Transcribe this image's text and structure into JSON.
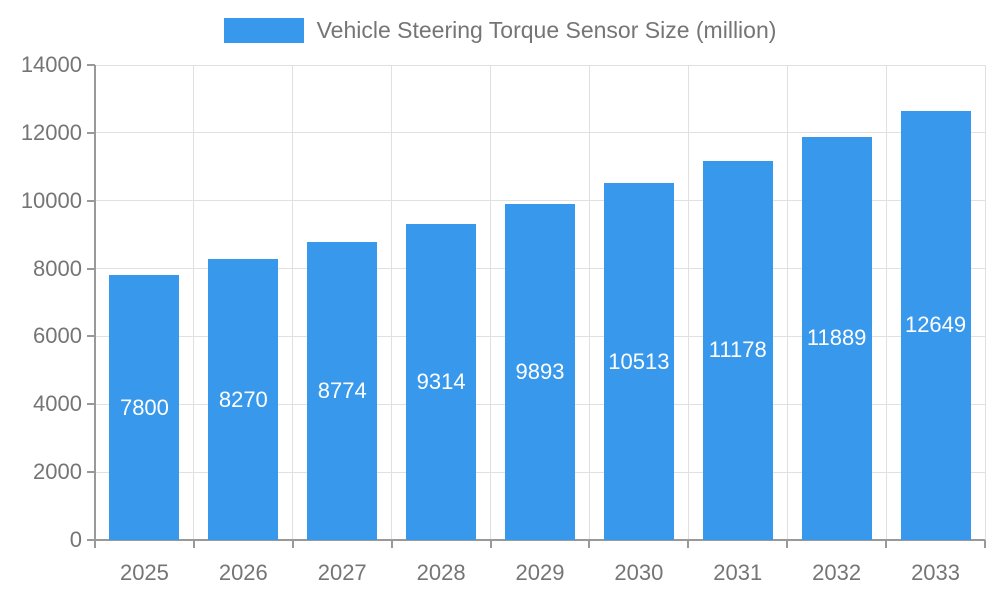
{
  "chart_data": {
    "type": "bar",
    "title": "Vehicle Steering Torque Sensor Size (million)",
    "categories": [
      "2025",
      "2026",
      "2027",
      "2028",
      "2029",
      "2030",
      "2031",
      "2032",
      "2033"
    ],
    "values": [
      7800,
      8270,
      8774,
      9314,
      9893,
      10513,
      11178,
      11889,
      12649
    ],
    "xlabel": "",
    "ylabel": "",
    "ylim": [
      0,
      14000
    ],
    "ytick_step": 2000,
    "ytick_labels": [
      "0",
      "2000",
      "4000",
      "6000",
      "8000",
      "10000",
      "12000",
      "14000"
    ],
    "grid": true,
    "legend_position": "top",
    "value_labels": "centered-in-bar",
    "colors": {
      "bar": "#3899ec",
      "value_label_text": "#ffffff",
      "axis_text": "#757575",
      "grid_line": "#e0e0e0",
      "axis_line": "#999999",
      "background": "#ffffff"
    }
  }
}
